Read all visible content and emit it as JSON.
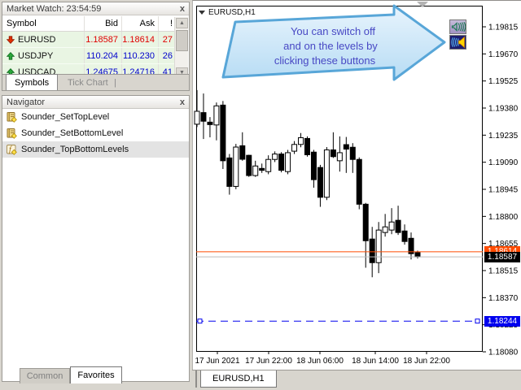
{
  "market_watch": {
    "title": "Market Watch: 23:54:59",
    "close_label": "x",
    "columns": {
      "symbol": "Symbol",
      "bid": "Bid",
      "ask": "Ask",
      "spread": "!"
    },
    "rows": [
      {
        "symbol": "EURUSD",
        "bid": "1.18587",
        "ask": "1.18614",
        "spread": "27",
        "direction": "down",
        "value_color": "#e00000"
      },
      {
        "symbol": "USDJPY",
        "bid": "110.204",
        "ask": "110.230",
        "spread": "26",
        "direction": "up",
        "value_color": "#0000cc"
      },
      {
        "symbol": "USDCAD",
        "bid": "1.24675",
        "ask": "1.24716",
        "spread": "41",
        "direction": "up",
        "value_color": "#0000cc"
      }
    ],
    "tabs": [
      {
        "label": "Symbols",
        "active": true
      },
      {
        "label": "Tick Chart",
        "active": false
      }
    ],
    "tab_separator": "|"
  },
  "navigator": {
    "title": "Navigator",
    "close_label": "x",
    "items": [
      {
        "label": "Sounder_SetTopLevel",
        "icon": "script-icon",
        "selected": false
      },
      {
        "label": "Sounder_SetBottomLevel",
        "icon": "script-icon",
        "selected": false
      },
      {
        "label": "Sounder_TopBottomLevels",
        "icon": "indicator-icon",
        "selected": true
      }
    ],
    "tabs": [
      {
        "label": "Common",
        "active": false
      },
      {
        "label": "Favorites",
        "active": true
      }
    ]
  },
  "chart": {
    "symbol_label": "EURUSD,H1",
    "tab_label": "EURUSD,H1",
    "callout": {
      "lines": [
        "You can switch off",
        "and on the levels by",
        "clicking these buttons"
      ],
      "text_color": "#4848c4",
      "fill_color": "#cfe7f9",
      "border_color": "#58a6d8"
    },
    "buttons": [
      {
        "name": "sound-top-button",
        "icon": "speaker-waves-icon",
        "state": "off"
      },
      {
        "name": "sound-bottom-button",
        "icon": "speaker-waves-icon",
        "state": "on"
      }
    ],
    "price_axis": {
      "ticks": [
        "1.19815",
        "1.19670",
        "1.19525",
        "1.19380",
        "1.19235",
        "1.19090",
        "1.18945",
        "1.18800",
        "1.18655",
        "1.18515",
        "1.18370",
        "1.18225",
        "1.18080"
      ]
    },
    "time_axis": [
      "17 Jun 2021",
      "17 Jun 22:00",
      "18 Jun 06:00",
      "18 Jun 14:00",
      "18 Jun 22:00"
    ],
    "price_labels": {
      "ask": {
        "value": "1.18614",
        "color": "#ff4b00"
      },
      "bid": {
        "value": "1.18587",
        "color": "#000000"
      },
      "level": {
        "value": "1.18244",
        "color": "#0000ee"
      }
    },
    "chart_data": {
      "type": "candlestick",
      "symbol": "EURUSD",
      "timeframe": "H1",
      "y_axis": {
        "top_tick": 1.19815,
        "bottom_tick": 1.1808
      },
      "levels": [
        {
          "name": "ask-line",
          "price": 1.18614,
          "color": "#ff4b00",
          "style": "solid",
          "selected": false
        },
        {
          "name": "bid-line",
          "price": 1.18587,
          "color": "#bbbbbb",
          "style": "solid",
          "selected": false
        },
        {
          "name": "level-line",
          "price": 1.18244,
          "color": "#0000ee",
          "style": "dashed",
          "selected": true
        }
      ],
      "ohlc": [
        [
          1.19295,
          1.19477,
          1.1928,
          1.19364
        ],
        [
          1.19357,
          1.19459,
          1.19216,
          1.19311
        ],
        [
          1.19306,
          1.19333,
          1.19225,
          1.19293
        ],
        [
          1.19291,
          1.19411,
          1.19209,
          1.19393
        ],
        [
          1.19397,
          1.19419,
          1.19056,
          1.191
        ],
        [
          1.19115,
          1.19136,
          1.18919,
          1.18963
        ],
        [
          1.18963,
          1.1919,
          1.18948,
          1.19173
        ],
        [
          1.1918,
          1.19252,
          1.191,
          1.19108
        ],
        [
          1.19129,
          1.19132,
          1.19014,
          1.19021
        ],
        [
          1.19021,
          1.191,
          1.19014,
          1.19072
        ],
        [
          1.19059,
          1.19085,
          1.19035,
          1.19049
        ],
        [
          1.19042,
          1.19129,
          1.19028,
          1.19107
        ],
        [
          1.19107,
          1.1915,
          1.19093,
          1.19136
        ],
        [
          1.19136,
          1.19146,
          1.19038,
          1.19049
        ],
        [
          1.19042,
          1.19158,
          1.19028,
          1.19143
        ],
        [
          1.19151,
          1.19205,
          1.19136,
          1.19187
        ],
        [
          1.19187,
          1.19248,
          1.19172,
          1.19223
        ],
        [
          1.19219,
          1.1923,
          1.19122,
          1.19132
        ],
        [
          1.19146,
          1.19158,
          1.18956,
          1.18999
        ],
        [
          1.19064,
          1.19078,
          1.18854,
          1.18905
        ],
        [
          1.18905,
          1.19173,
          1.1889,
          1.19158
        ],
        [
          1.19158,
          1.19252,
          1.19115,
          1.19122
        ],
        [
          1.191,
          1.1923,
          1.19042,
          1.19143
        ],
        [
          1.19186,
          1.19227,
          1.19035,
          1.19162
        ],
        [
          1.19172,
          1.19194,
          1.19035,
          1.19107
        ],
        [
          1.19107,
          1.19118,
          1.18841,
          1.18868
        ],
        [
          1.18868,
          1.18875,
          1.18529,
          1.18673
        ],
        [
          1.18682,
          1.18747,
          1.18478,
          1.18556
        ],
        [
          1.18556,
          1.18773,
          1.185,
          1.1873
        ],
        [
          1.18717,
          1.18816,
          1.18695,
          1.18747
        ],
        [
          1.1873,
          1.18847,
          1.18708,
          1.18773
        ],
        [
          1.18782,
          1.1886,
          1.18704,
          1.18717
        ],
        [
          1.18725,
          1.1876,
          1.18652,
          1.18669
        ],
        [
          1.18686,
          1.18717,
          1.18573,
          1.18604
        ],
        [
          1.1861,
          1.1862,
          1.18578,
          1.18587
        ]
      ]
    }
  }
}
